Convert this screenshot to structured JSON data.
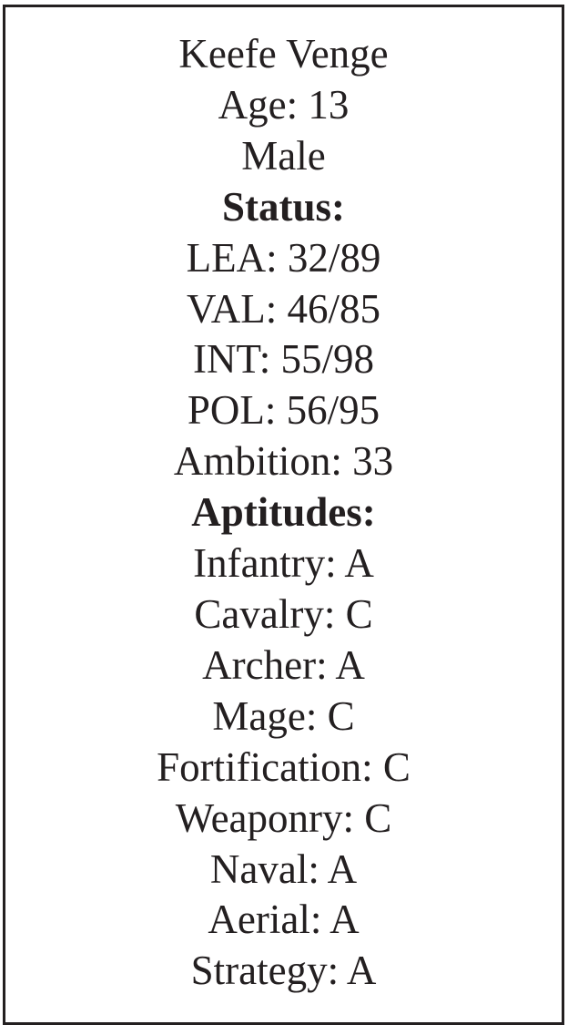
{
  "character": {
    "name": "Keefe Venge",
    "age_line": "Age: 13",
    "gender": "Male"
  },
  "status": {
    "header": "Status:",
    "lines": [
      "LEA: 32/89",
      "VAL: 46/85",
      "INT: 55/98",
      "POL: 56/95",
      "Ambition: 33"
    ]
  },
  "aptitudes": {
    "header": "Aptitudes:",
    "lines": [
      "Infantry: A",
      "Cavalry: C",
      "Archer: A",
      "Mage: C",
      "Fortification: C",
      "Weaponry: C",
      "Naval: A",
      "Aerial: A",
      "Strategy: A"
    ]
  },
  "colors": {
    "text": "#231f20",
    "border": "#231f20",
    "background": "#ffffff"
  }
}
